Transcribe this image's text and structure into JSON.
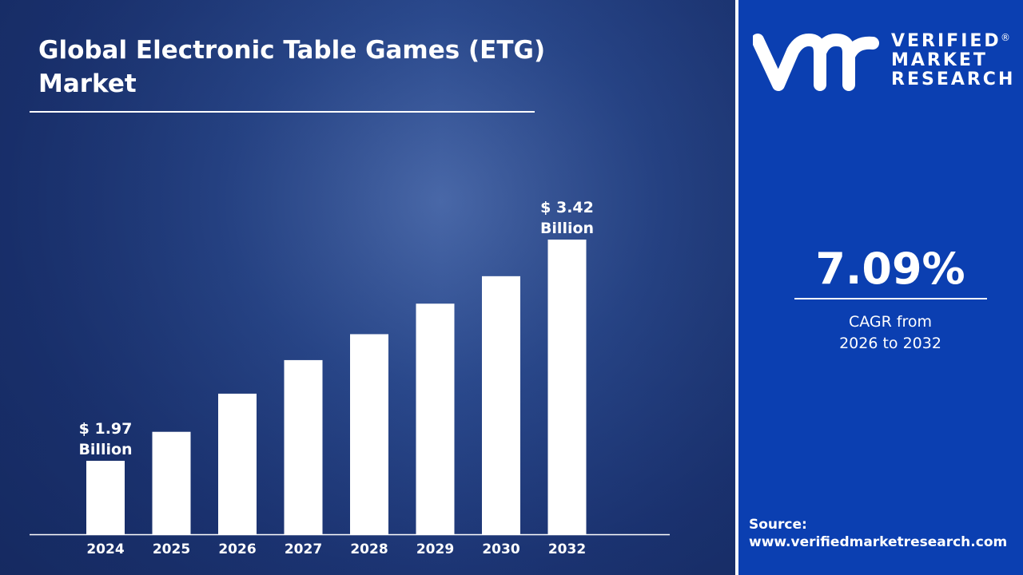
{
  "title": "Global Electronic Table Games (ETG) Market",
  "brand": {
    "logo_mark": "vmr",
    "logo_text": [
      "VERIFIED",
      "MARKET",
      "RESEARCH"
    ],
    "registered": "®"
  },
  "cagr": {
    "value": "7.09%",
    "label_line1": "CAGR from",
    "label_line2": "2026 to 2032"
  },
  "source": {
    "label": "Source:",
    "url": "www.verifiedmarketresearch.com"
  },
  "colors": {
    "panel": "#0b3fb1",
    "bars": "#ffffff",
    "background": "#1d3676"
  },
  "chart_data": {
    "type": "bar",
    "title": "Global Electronic Table Games (ETG) Market",
    "categories": [
      "2024",
      "2025",
      "2026",
      "2027",
      "2028",
      "2029",
      "2030",
      "2032"
    ],
    "values": [
      1.97,
      2.16,
      2.41,
      2.63,
      2.8,
      3.0,
      3.18,
      3.42
    ],
    "unit": "Billion USD",
    "data_labels": [
      {
        "index": 0,
        "line1": "$ 1.97",
        "line2": "Billion"
      },
      {
        "index": 7,
        "line1": "$ 3.42",
        "line2": "Billion"
      }
    ],
    "grid": false,
    "legend": "none"
  }
}
